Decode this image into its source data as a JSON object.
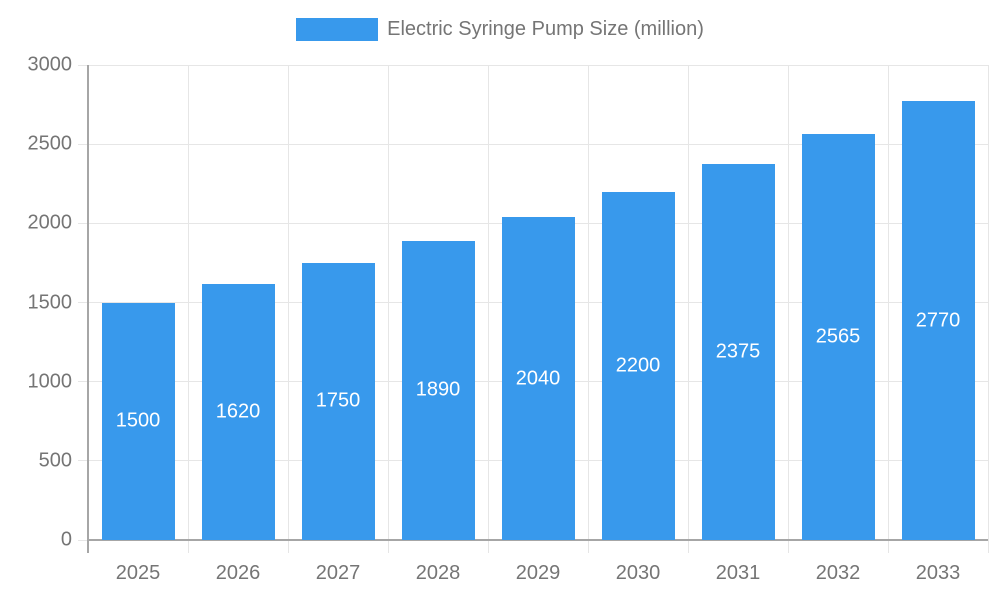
{
  "chart_data": {
    "type": "bar",
    "title": "Electric Syringe Pump Size (million)",
    "categories": [
      "2025",
      "2026",
      "2027",
      "2028",
      "2029",
      "2030",
      "2031",
      "2032",
      "2033"
    ],
    "values": [
      1500,
      1620,
      1750,
      1890,
      2040,
      2200,
      2375,
      2565,
      2770
    ],
    "value_labels": [
      "1500",
      "1620",
      "1750",
      "1890",
      "2040",
      "2200",
      "2375",
      "2565",
      "2770"
    ],
    "xlabel": "",
    "ylabel": "",
    "ylim": [
      0,
      3000
    ],
    "y_ticks": [
      0,
      500,
      1000,
      1500,
      2000,
      2500,
      3000
    ],
    "grid": true,
    "legend_position": "top",
    "value_label_position": "inside-center",
    "colors": {
      "bar": "#3899EC",
      "value_label": "#FFFFFF",
      "axis_text": "#757575",
      "grid": "#E6E6E6",
      "axis_line": "#A6A6A6",
      "background": "#FFFFFF"
    }
  }
}
